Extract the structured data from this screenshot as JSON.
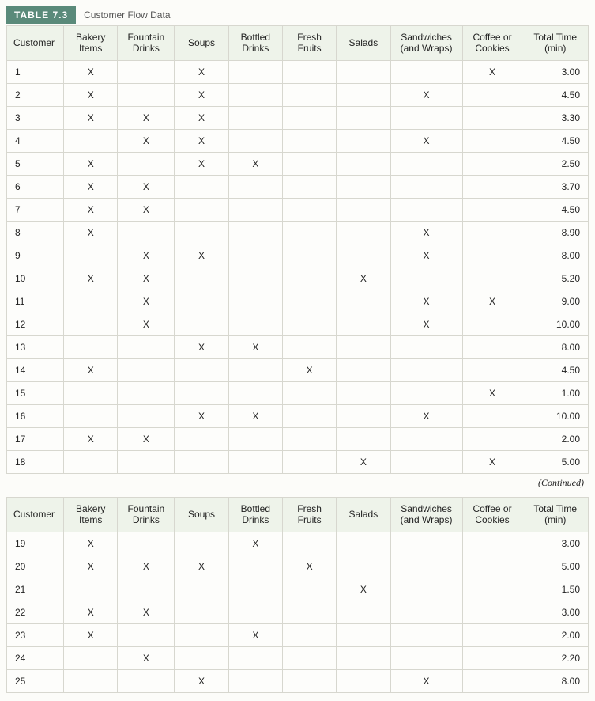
{
  "tableLabel": "TABLE 7.3",
  "tableTitle": "Customer Flow Data",
  "continuedText": "(Continued)",
  "mark": "X",
  "columns": [
    "Customer",
    "Bakery Items",
    "Fountain Drinks",
    "Soups",
    "Bottled Drinks",
    "Fresh Fruits",
    "Salads",
    "Sandwiches (and Wraps)",
    "Coffee or Cookies",
    "Total Time (min)"
  ],
  "table1Rows": [
    {
      "n": "1",
      "cells": [
        true,
        false,
        true,
        false,
        false,
        false,
        false,
        true,
        "3.00"
      ]
    },
    {
      "n": "2",
      "cells": [
        true,
        false,
        true,
        false,
        false,
        false,
        true,
        false,
        "4.50"
      ]
    },
    {
      "n": "3",
      "cells": [
        true,
        true,
        true,
        false,
        false,
        false,
        false,
        false,
        "3.30"
      ]
    },
    {
      "n": "4",
      "cells": [
        false,
        true,
        true,
        false,
        false,
        false,
        true,
        false,
        "4.50"
      ]
    },
    {
      "n": "5",
      "cells": [
        true,
        false,
        true,
        true,
        false,
        false,
        false,
        false,
        "2.50"
      ]
    },
    {
      "n": "6",
      "cells": [
        true,
        true,
        false,
        false,
        false,
        false,
        false,
        false,
        "3.70"
      ]
    },
    {
      "n": "7",
      "cells": [
        true,
        true,
        false,
        false,
        false,
        false,
        false,
        false,
        "4.50"
      ]
    },
    {
      "n": "8",
      "cells": [
        true,
        false,
        false,
        false,
        false,
        false,
        true,
        false,
        "8.90"
      ]
    },
    {
      "n": "9",
      "cells": [
        false,
        true,
        true,
        false,
        false,
        false,
        true,
        false,
        "8.00"
      ]
    },
    {
      "n": "10",
      "cells": [
        true,
        true,
        false,
        false,
        false,
        true,
        false,
        false,
        "5.20"
      ]
    },
    {
      "n": "11",
      "cells": [
        false,
        true,
        false,
        false,
        false,
        false,
        true,
        true,
        "9.00"
      ]
    },
    {
      "n": "12",
      "cells": [
        false,
        true,
        false,
        false,
        false,
        false,
        true,
        false,
        "10.00"
      ]
    },
    {
      "n": "13",
      "cells": [
        false,
        false,
        true,
        true,
        false,
        false,
        false,
        false,
        "8.00"
      ]
    },
    {
      "n": "14",
      "cells": [
        true,
        false,
        false,
        false,
        true,
        false,
        false,
        false,
        "4.50"
      ]
    },
    {
      "n": "15",
      "cells": [
        false,
        false,
        false,
        false,
        false,
        false,
        false,
        true,
        "1.00"
      ]
    },
    {
      "n": "16",
      "cells": [
        false,
        false,
        true,
        true,
        false,
        false,
        true,
        false,
        "10.00"
      ]
    },
    {
      "n": "17",
      "cells": [
        true,
        true,
        false,
        false,
        false,
        false,
        false,
        false,
        "2.00"
      ]
    },
    {
      "n": "18",
      "cells": [
        false,
        false,
        false,
        false,
        false,
        true,
        false,
        true,
        "5.00"
      ]
    }
  ],
  "table2Rows": [
    {
      "n": "19",
      "cells": [
        true,
        false,
        false,
        true,
        false,
        false,
        false,
        false,
        "3.00"
      ]
    },
    {
      "n": "20",
      "cells": [
        true,
        true,
        true,
        false,
        true,
        false,
        false,
        false,
        "5.00"
      ]
    },
    {
      "n": "21",
      "cells": [
        false,
        false,
        false,
        false,
        false,
        true,
        false,
        false,
        "1.50"
      ]
    },
    {
      "n": "22",
      "cells": [
        true,
        true,
        false,
        false,
        false,
        false,
        false,
        false,
        "3.00"
      ]
    },
    {
      "n": "23",
      "cells": [
        true,
        false,
        false,
        true,
        false,
        false,
        false,
        false,
        "2.00"
      ]
    },
    {
      "n": "24",
      "cells": [
        false,
        true,
        false,
        false,
        false,
        false,
        false,
        false,
        "2.20"
      ]
    },
    {
      "n": "25",
      "cells": [
        false,
        false,
        true,
        false,
        false,
        false,
        true,
        false,
        "8.00"
      ]
    }
  ]
}
